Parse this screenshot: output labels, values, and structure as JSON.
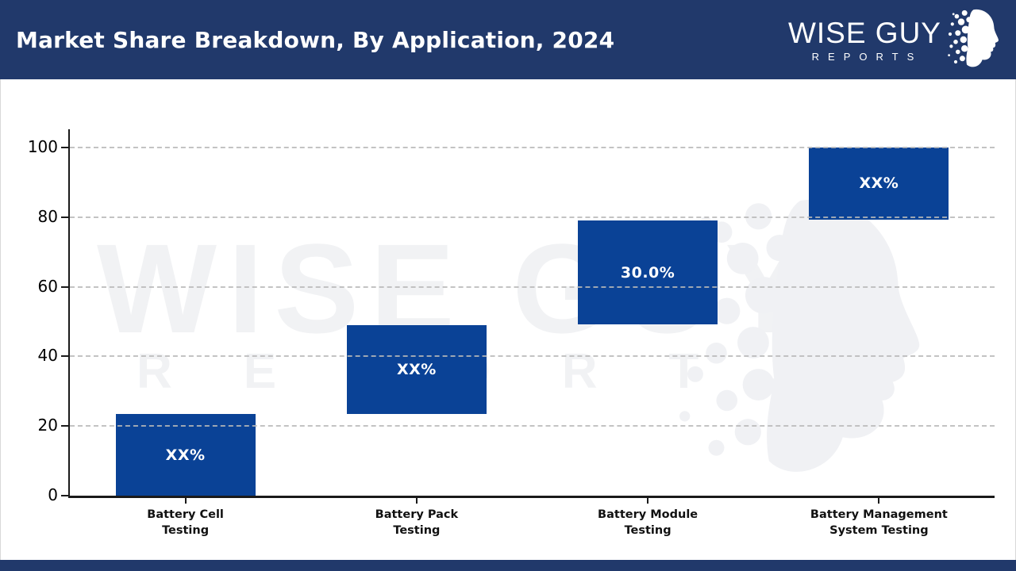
{
  "header": {
    "title": "Market Share Breakdown, By Application, 2024",
    "logo_primary": "WISE GUY",
    "logo_secondary": "REPORTS"
  },
  "watermark": {
    "primary": "WISE GUY",
    "secondary": "REPORTS"
  },
  "colors": {
    "header_bg": "#21396b",
    "footer_bg": "#21396b",
    "bar_fill": "#0a4296",
    "bar_label_text": "#ffffff",
    "axis": "#1a1a1a",
    "gridline": "#bdbdbd",
    "watermark": "#f1f2f4"
  },
  "chart_data": {
    "type": "bar",
    "variant": "floating-waterfall",
    "title": "Market Share Breakdown, By Application, 2024",
    "xlabel": "",
    "ylabel": "",
    "ylim": [
      0,
      100
    ],
    "yticks": [
      0,
      20,
      40,
      60,
      80,
      100
    ],
    "grid": "horizontal-dashed",
    "legend": null,
    "categories": [
      "Battery Cell Testing",
      "Battery Pack Testing",
      "Battery Module Testing",
      "Battery Management System Testing"
    ],
    "category_lines": [
      [
        "Battery Cell",
        "Testing"
      ],
      [
        "Battery Pack",
        "Testing"
      ],
      [
        "Battery Module",
        "Testing"
      ],
      [
        "Battery Management",
        "System Testing"
      ]
    ],
    "bars": [
      {
        "category": "Battery Cell Testing",
        "start": 0,
        "end": 23.4,
        "value_label": "XX%"
      },
      {
        "category": "Battery Pack Testing",
        "start": 23.4,
        "end": 49.1,
        "value_label": "XX%"
      },
      {
        "category": "Battery Module Testing",
        "start": 49.1,
        "end": 79.1,
        "value_label": "30.0%"
      },
      {
        "category": "Battery Management System Testing",
        "start": 79.3,
        "end": 100,
        "value_label": "XX%"
      }
    ]
  }
}
